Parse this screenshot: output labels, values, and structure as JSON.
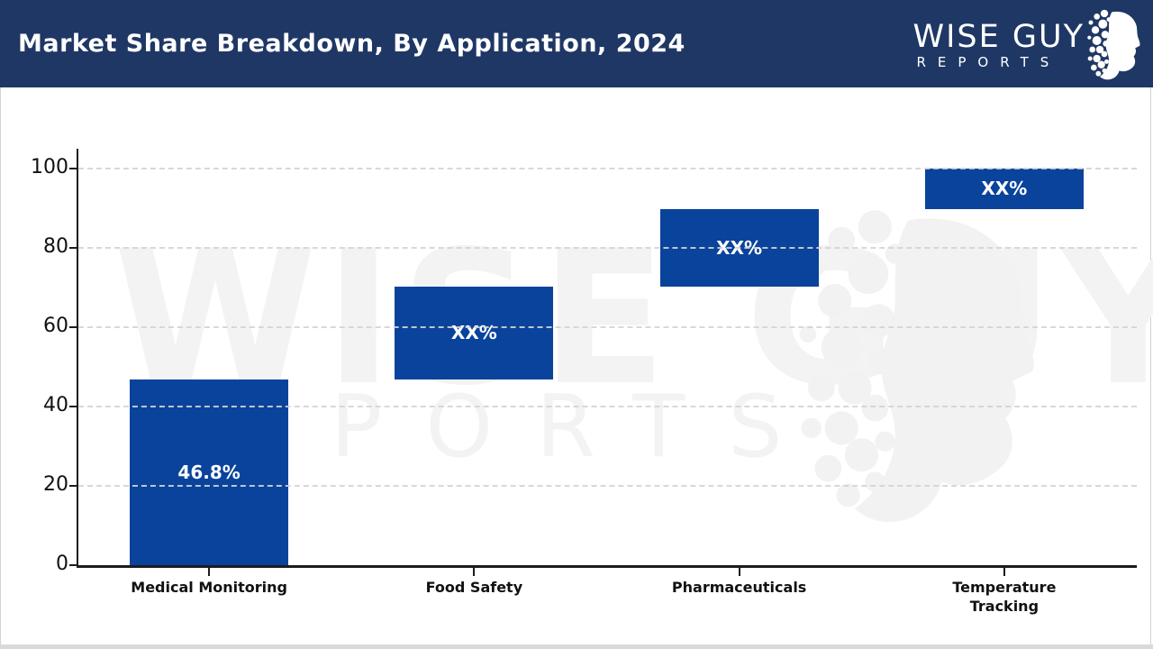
{
  "header": {
    "title": "Market Share Breakdown, By Application, 2024",
    "logo": {
      "line1": "WISE GUY",
      "line2": "REPORTS"
    }
  },
  "watermark": {
    "line1": "WISE GUY",
    "line2": "REPORTS"
  },
  "colors": {
    "header_bg": "#1f3765",
    "bar": "#09439b",
    "grid": "#d4d4d4",
    "axis": "#1c1c1c",
    "watermark": "#f3f3f3",
    "bar_label": "#ffffff",
    "footer_strip": "#d9d9d9"
  },
  "chart_data": {
    "type": "bar",
    "subtype": "waterfall",
    "title": "Market Share Breakdown, By Application, 2024",
    "categories": [
      "Medical Monitoring",
      "Food Safety",
      "Pharmaceuticals",
      "Temperature Tracking"
    ],
    "category_display": [
      "Medical Monitoring",
      "Food Safety",
      "Pharmaceuticals",
      "Temperature\nTracking"
    ],
    "series": [
      {
        "name": "Market Share (%)",
        "segments": [
          {
            "start": 0,
            "end": 46.8,
            "label": "46.8%"
          },
          {
            "start": 46.8,
            "end": 70.3,
            "label": "XX%"
          },
          {
            "start": 70.3,
            "end": 89.8,
            "label": "XX%"
          },
          {
            "start": 89.8,
            "end": 100,
            "label": "XX%"
          }
        ]
      }
    ],
    "xlabel": "",
    "ylabel": "",
    "ylim": [
      0,
      105
    ],
    "yticks": [
      0,
      20,
      40,
      60,
      80,
      100
    ],
    "grid": "horizontal-dashed",
    "legend": "none"
  }
}
